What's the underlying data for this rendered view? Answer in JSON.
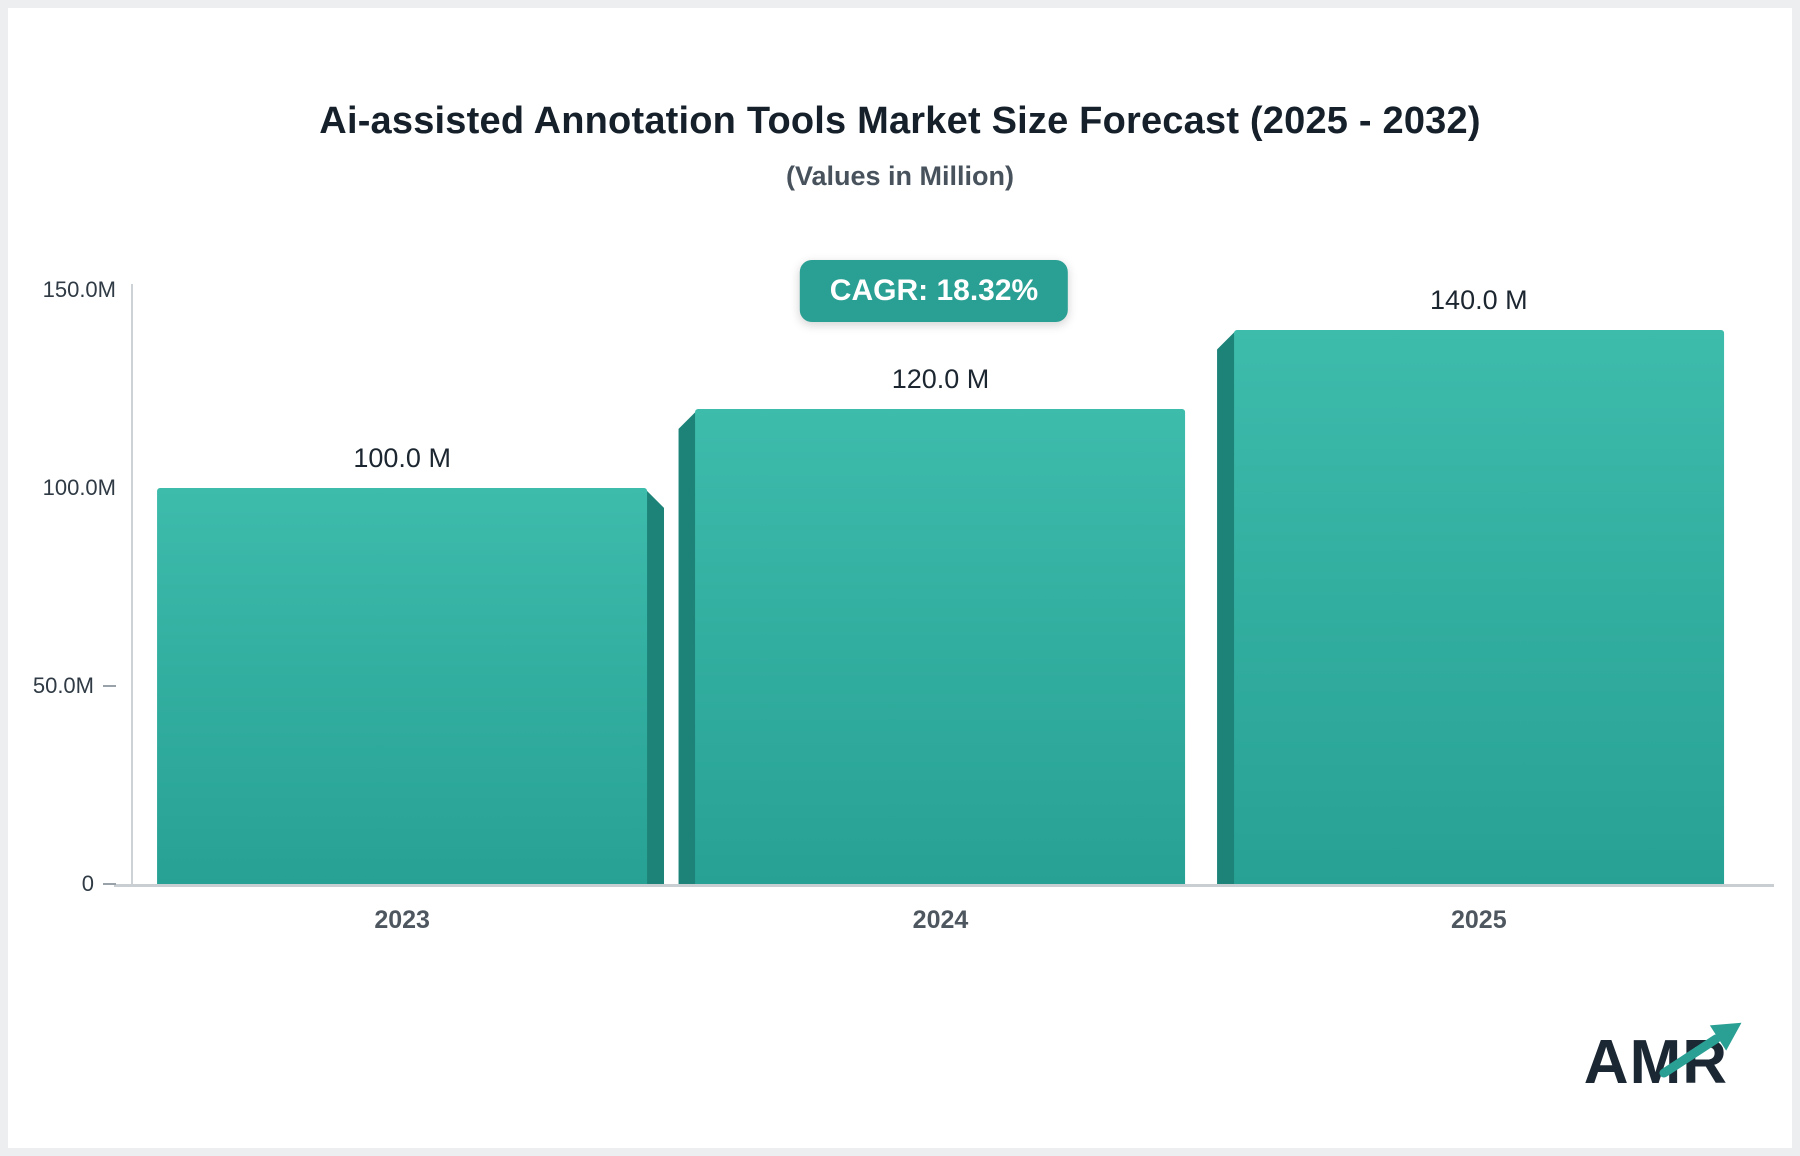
{
  "title": "Ai-assisted Annotation Tools Market Size Forecast (2025 - 2032)",
  "subtitle": "(Values in Million)",
  "badge": {
    "label": "CAGR: 18.32%"
  },
  "logo": {
    "text": "AMR"
  },
  "colors": {
    "accent": "#2aa094",
    "bar_top": "#3dbbab",
    "bar_bottom": "#27a194",
    "bar_side": "#1d8379",
    "axis": "#cdd2d7"
  },
  "chart_data": {
    "type": "bar",
    "title": "Ai-assisted Annotation Tools Market Size Forecast (2025 - 2032)",
    "subtitle": "(Values in Million)",
    "categories": [
      "2023",
      "2024",
      "2025"
    ],
    "values": [
      100.0,
      120.0,
      140.0
    ],
    "value_labels": [
      "100.0 M",
      "120.0 M",
      "140.0 M"
    ],
    "unit": "Million",
    "annotation": "CAGR: 18.32%",
    "xlabel": "",
    "ylabel": "",
    "ylim": [
      0,
      150
    ],
    "yticks": [
      0,
      50,
      100,
      150
    ],
    "ytick_labels": [
      "0",
      "50.0M",
      "100.0M",
      "150.0M"
    ],
    "ytick_dashes": [
      true,
      true,
      false,
      false
    ],
    "grid": false,
    "legend": false
  }
}
